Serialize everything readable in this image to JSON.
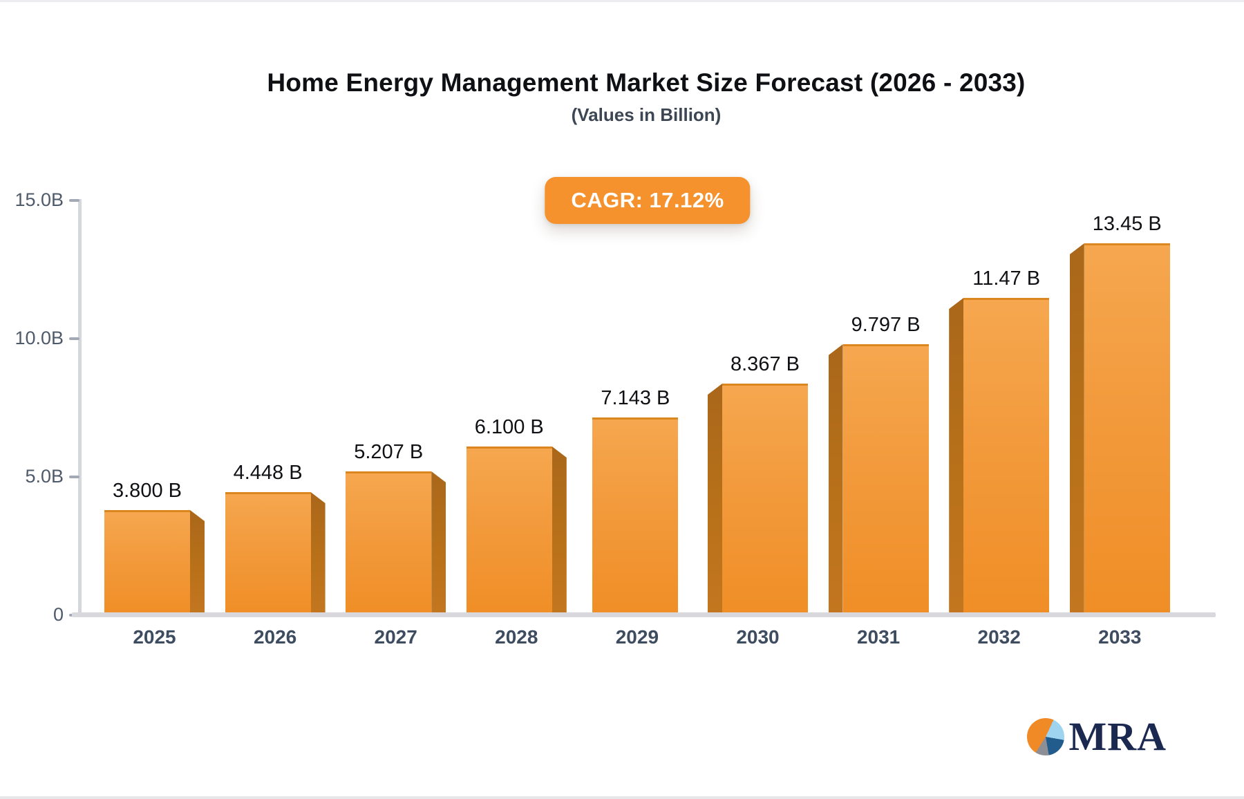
{
  "title": "Home Energy Management Market Size Forecast (2026 - 2033)",
  "subtitle": "(Values in Billion)",
  "cagr_badge": "CAGR: 17.12%",
  "chart_data": {
    "type": "bar",
    "title": "Home Energy Management Market Size Forecast (2026 - 2033)",
    "subtitle": "(Values in Billion)",
    "cagr_percent": 17.12,
    "categories": [
      "2025",
      "2026",
      "2027",
      "2028",
      "2029",
      "2030",
      "2031",
      "2032",
      "2033"
    ],
    "values": [
      3.8,
      4.448,
      5.207,
      6.1,
      7.143,
      8.367,
      9.797,
      11.47,
      13.45
    ],
    "bar_labels": [
      "3.800 B",
      "4.448 B",
      "5.207 B",
      "6.100 B",
      "7.143 B",
      "8.367 B",
      "9.797 B",
      "11.47 B",
      "13.45 B"
    ],
    "xlabel": "",
    "ylabel": "",
    "ylim": [
      0,
      15
    ],
    "yticks": [
      {
        "value": 15,
        "label": "15.0B"
      },
      {
        "value": 10,
        "label": "10.0B"
      },
      {
        "value": 5,
        "label": "5.0B"
      },
      {
        "value": 0,
        "label": "0"
      }
    ],
    "grid": false,
    "legend_position": "none",
    "bar_style": "3d-extruded-toward-center",
    "colors": {
      "bar_face_top": "#F6A74F",
      "bar_face_bottom": "#F08E26",
      "bar_side": "#B5701D",
      "bar_top_edge": "#DC861F",
      "axis_line": "#D5D7DC",
      "baseline": "#D9D9DD",
      "tick_text": "#4E5A6A",
      "category_text": "#3E4C60",
      "value_label_text": "#101114",
      "badge_background": "#F6922E",
      "badge_text": "#FFFFFF"
    }
  },
  "logo": {
    "text": "MRA",
    "text_color": "#1B2950",
    "pie_colors": {
      "orange": "#F08A26",
      "light_blue": "#9ED4F0",
      "dark_blue": "#215C8C",
      "gray": "#8E8E96"
    }
  }
}
